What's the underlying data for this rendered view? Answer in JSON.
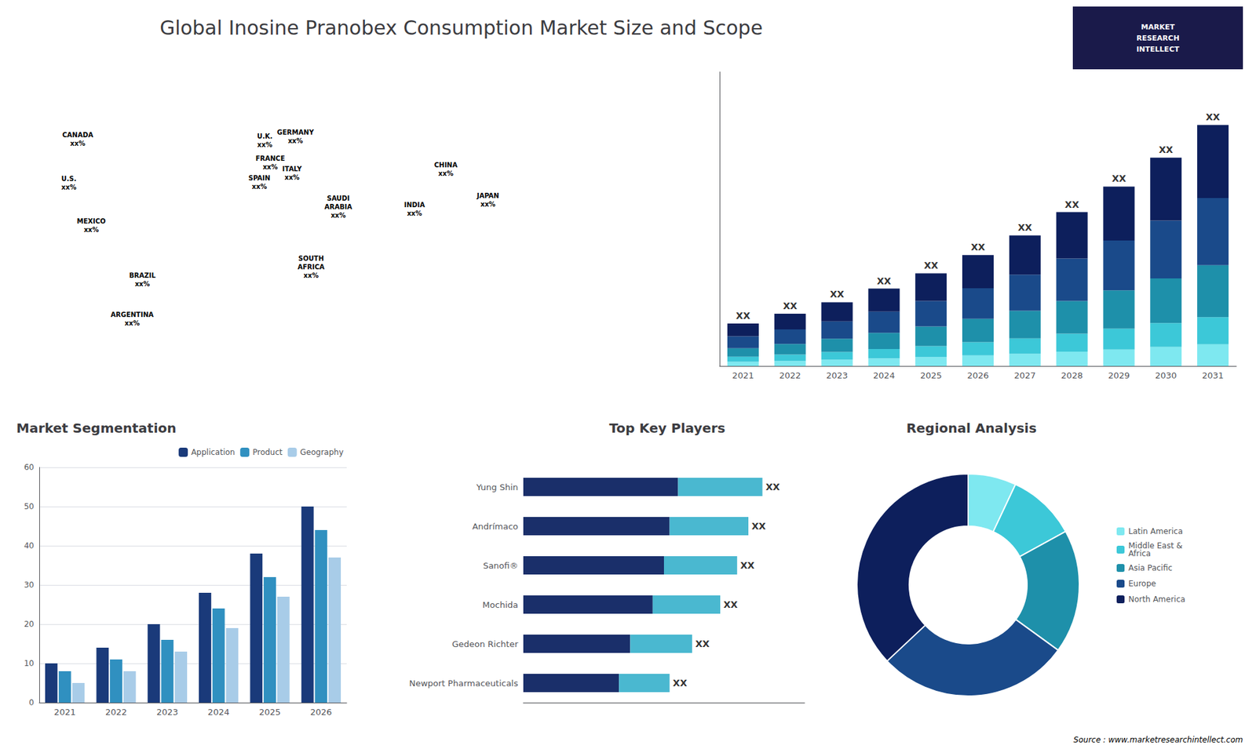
{
  "chart_data": [
    {
      "type": "map",
      "title": "Global Inosine Pranobex Consumption Market Size and Scope",
      "annotations": [
        "CANADA\nxx%",
        "U.S.\nxx%",
        "MEXICO\nxx%",
        "BRAZIL\nxx%",
        "ARGENTINA\nxx%",
        "U.K.\nxx%",
        "FRANCE\nxx%",
        "SPAIN\nxx%",
        "GERMANY\nxx%",
        "ITALY\nxx%",
        "SAUDI\nARABIA\nxx%",
        "SOUTH\nAFRICA\nxx%",
        "CHINA\nxx%",
        "INDIA\nxx%",
        "JAPAN\nxx%"
      ]
    },
    {
      "type": "bar",
      "categories": [
        "2021",
        "2022",
        "2023",
        "2024",
        "2025",
        "2026",
        "2027",
        "2028",
        "2029",
        "2030",
        "2031"
      ],
      "series": [
        {
          "color": "#7ee8f0",
          "values": [
            1.0,
            1.2,
            1.5,
            1.8,
            2.1,
            2.5,
            2.9,
            3.4,
            3.9,
            4.5,
            5.1
          ]
        },
        {
          "color": "#3cc8d8",
          "values": [
            1.2,
            1.5,
            1.8,
            2.2,
            2.6,
            3.1,
            3.6,
            4.2,
            4.9,
            5.6,
            6.4
          ]
        },
        {
          "color": "#1e90aa",
          "values": [
            2.0,
            2.5,
            3.1,
            3.8,
            4.6,
            5.5,
            6.5,
            7.7,
            9.0,
            10.5,
            12.2
          ]
        },
        {
          "color": "#1a4a8a",
          "values": [
            2.8,
            3.4,
            4.1,
            5.0,
            6.0,
            7.2,
            8.5,
            10.0,
            11.7,
            13.6,
            15.8
          ]
        },
        {
          "color": "#0d1f5c",
          "values": [
            3.0,
            3.7,
            4.5,
            5.4,
            6.5,
            7.8,
            9.2,
            10.9,
            12.7,
            14.8,
            17.2
          ]
        }
      ],
      "stacked": true,
      "ylim": [
        0,
        69.174
      ],
      "tick_labels": "x",
      "annotations": [
        "XX",
        "XX",
        "XX",
        "XX",
        "XX",
        "XX",
        "XX",
        "XX",
        "XX",
        "XX",
        "XX"
      ]
    },
    {
      "type": "bar",
      "title": "Market Segmentation",
      "categories": [
        "2021",
        "2022",
        "2023",
        "2024",
        "2025",
        "2026"
      ],
      "series": [
        {
          "name": "Application",
          "color": "#1a3a7a",
          "values": [
            10,
            14,
            20,
            28,
            38,
            50
          ]
        },
        {
          "name": "Product",
          "color": "#3090c0",
          "values": [
            8,
            11,
            16,
            24,
            32,
            44
          ]
        },
        {
          "name": "Geography",
          "color": "#a8cce8",
          "values": [
            5,
            8,
            13,
            19,
            27,
            37
          ]
        }
      ],
      "ylim": [
        0,
        60
      ],
      "yticks": [
        0,
        10,
        20,
        30,
        40,
        50,
        60
      ],
      "grid": true,
      "legend": "upper right"
    },
    {
      "type": "bar",
      "title": "Top Key Players",
      "orientation": "horizontal",
      "stacked": true,
      "categories": [
        "Yung Shin",
        "Andrímaco",
        "Sanofi®",
        "Mochida",
        "Gedeon Richter",
        "Newport Pharmaceuticals"
      ],
      "series": [
        {
          "color": "#1a2f6a",
          "values": [
            0.55,
            0.52,
            0.5,
            0.46,
            0.38,
            0.34
          ]
        },
        {
          "color": "#4ab8d0",
          "values": [
            0.3,
            0.28,
            0.26,
            0.24,
            0.22,
            0.18
          ]
        }
      ],
      "xlim": [
        0,
        1.0
      ],
      "tick_labels": "y",
      "annotations": [
        "XX",
        "XX",
        "XX",
        "XX",
        "XX",
        "XX"
      ]
    },
    {
      "type": "donut",
      "title": "Regional Analysis",
      "categories": [
        "Latin America",
        "Middle East &\nAfrica",
        "Asia Pacific",
        "Europe",
        "North America"
      ],
      "values": [
        7,
        10,
        18,
        28,
        37
      ],
      "colors": [
        "#7ee8f0",
        "#3cc8d8",
        "#1e90aa",
        "#1a4a8a",
        "#0d1f5c"
      ],
      "legend": "right"
    },
    {
      "type": "note",
      "annotations": [
        "Source : www.marketresearchintellect.com",
        "MARKET\nRESEARCH\nINTELLECT"
      ],
      "colors": [
        "#1a1a4a",
        "#ffffff"
      ]
    }
  ]
}
